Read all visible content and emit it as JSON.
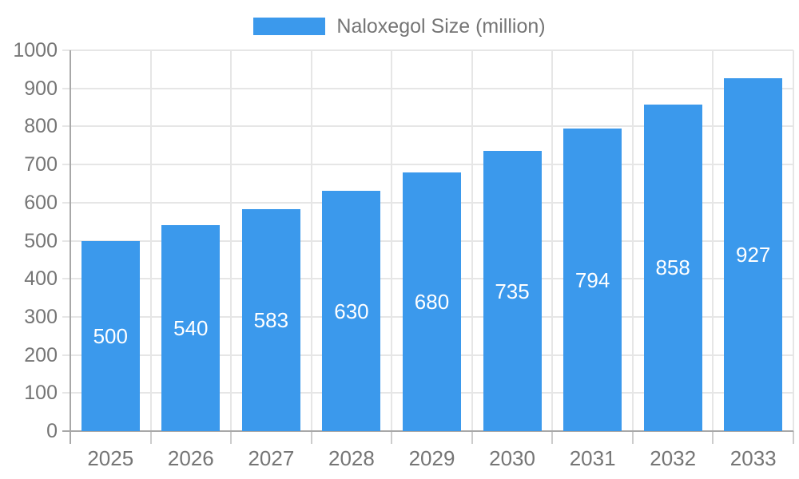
{
  "legend": {
    "label": "Naloxegol Size (million)"
  },
  "colors": {
    "bar": "#3b99ec",
    "bar_label": "#ffffff",
    "axis_text": "#757575",
    "grid": "#e6e6e6",
    "tick": "#cccccc",
    "axis_line": "#a8a8a8",
    "background": "#ffffff"
  },
  "chart_data": {
    "type": "bar",
    "title": "",
    "xlabel": "",
    "ylabel": "",
    "categories": [
      "2025",
      "2026",
      "2027",
      "2028",
      "2029",
      "2030",
      "2031",
      "2032",
      "2033"
    ],
    "series": [
      {
        "name": "Naloxegol Size (million)",
        "values": [
          500,
          540,
          583,
          630,
          680,
          735,
          794,
          858,
          927
        ]
      }
    ],
    "ylim": [
      0,
      1000
    ],
    "ytick_step": 100,
    "ytick_labels": [
      "0",
      "100",
      "200",
      "300",
      "400",
      "500",
      "600",
      "700",
      "800",
      "900",
      "1000"
    ],
    "grid": true,
    "legend_position": "top",
    "bar_labels_inside": true
  }
}
